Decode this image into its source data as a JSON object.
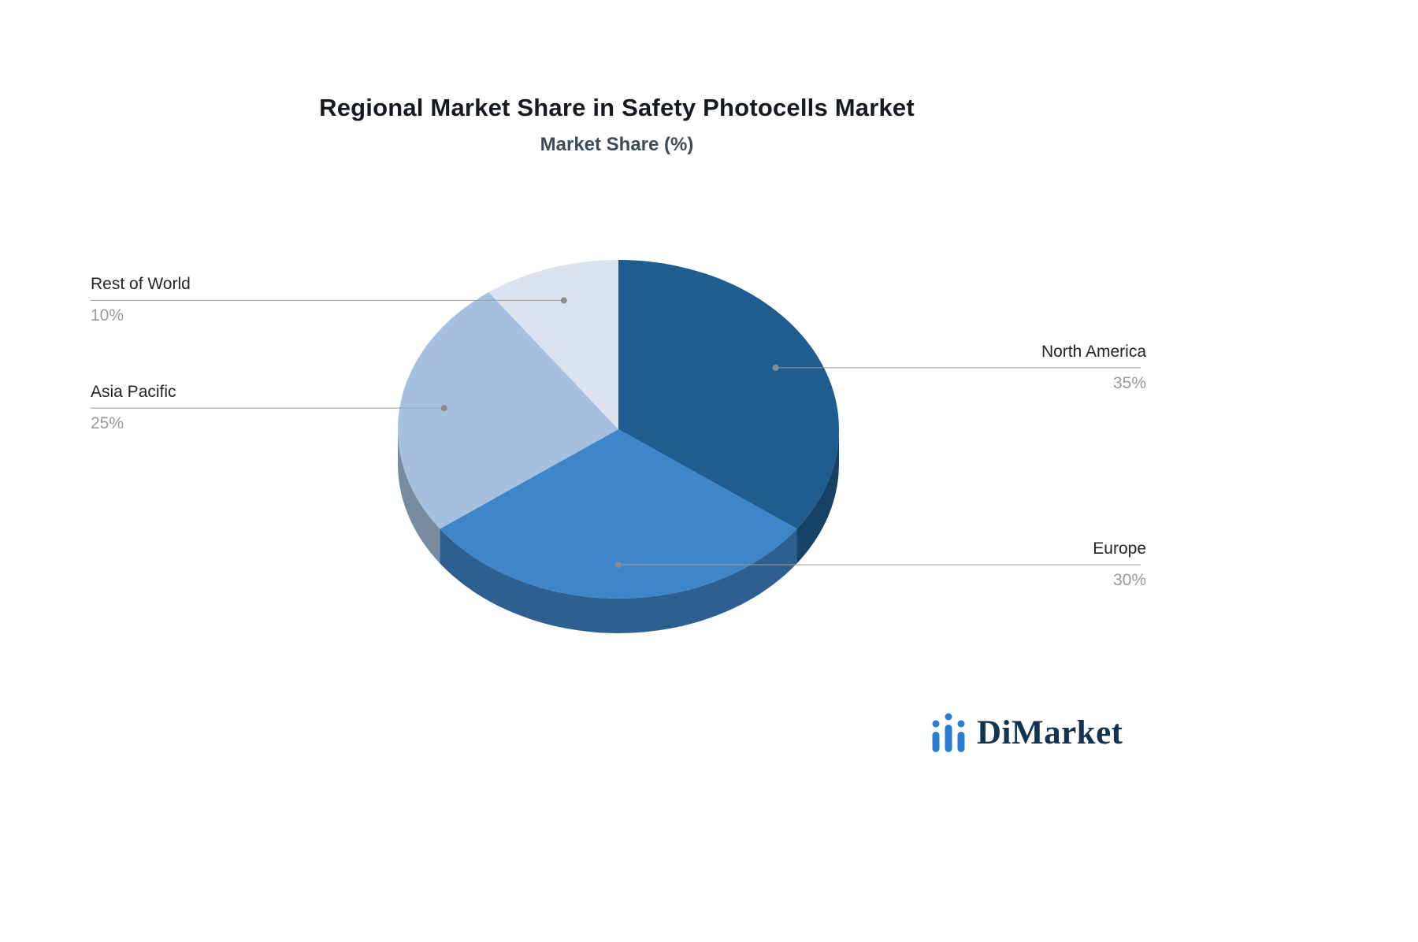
{
  "chart_data": {
    "type": "pie",
    "title": "Regional Market Share in Safety Photocells Market",
    "subtitle": "Market Share (%)",
    "labels": [
      "North America",
      "Europe",
      "Asia Pacific",
      "Rest of World"
    ],
    "values": [
      35,
      30,
      25,
      10
    ],
    "percent_labels": [
      "35%",
      "30%",
      "25%",
      "10%"
    ],
    "colors": [
      "#1F5C90",
      "#3E86C8",
      "#A5C1DF",
      "#DCE3EE"
    ],
    "start_angle_deg": -90,
    "direction": "clockwise",
    "effect_3d": true,
    "legend_position": "none",
    "label_style": {
      "name_color": "#242424",
      "percent_color": "#999999",
      "leader_line_color": "#9E9E9E",
      "leader_dot_color": "#8C8C8C"
    }
  },
  "logo": {
    "text": "DiMarket",
    "icon": "bar-chart-icon",
    "icon_color": "#2B7CD3",
    "text_color": "#14334F"
  }
}
